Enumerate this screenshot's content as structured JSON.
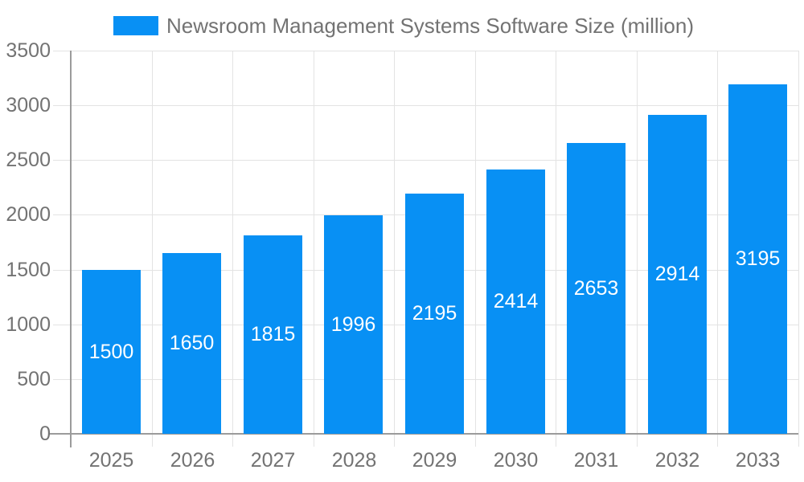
{
  "chart_data": {
    "type": "bar",
    "title": "Newsroom Management Systems Software Size (million)",
    "categories": [
      "2025",
      "2026",
      "2027",
      "2028",
      "2029",
      "2030",
      "2031",
      "2032",
      "2033"
    ],
    "values": [
      1500,
      1650,
      1815,
      1996,
      2195,
      2414,
      2653,
      2914,
      3195
    ],
    "xlabel": "",
    "ylabel": "",
    "ylim": [
      0,
      3500
    ],
    "ytick_step": 500,
    "yticks": [
      0,
      500,
      1000,
      1500,
      2000,
      2500,
      3000,
      3500
    ],
    "grid": true,
    "legend_position": "top",
    "value_label_position": "inside-center",
    "colors": {
      "bar": "#0890f4",
      "grid": "#e3e3e3",
      "axis": "#9b9b9b",
      "tick_text": "#737373",
      "value_label": "#ffffff",
      "background": "#ffffff"
    }
  }
}
